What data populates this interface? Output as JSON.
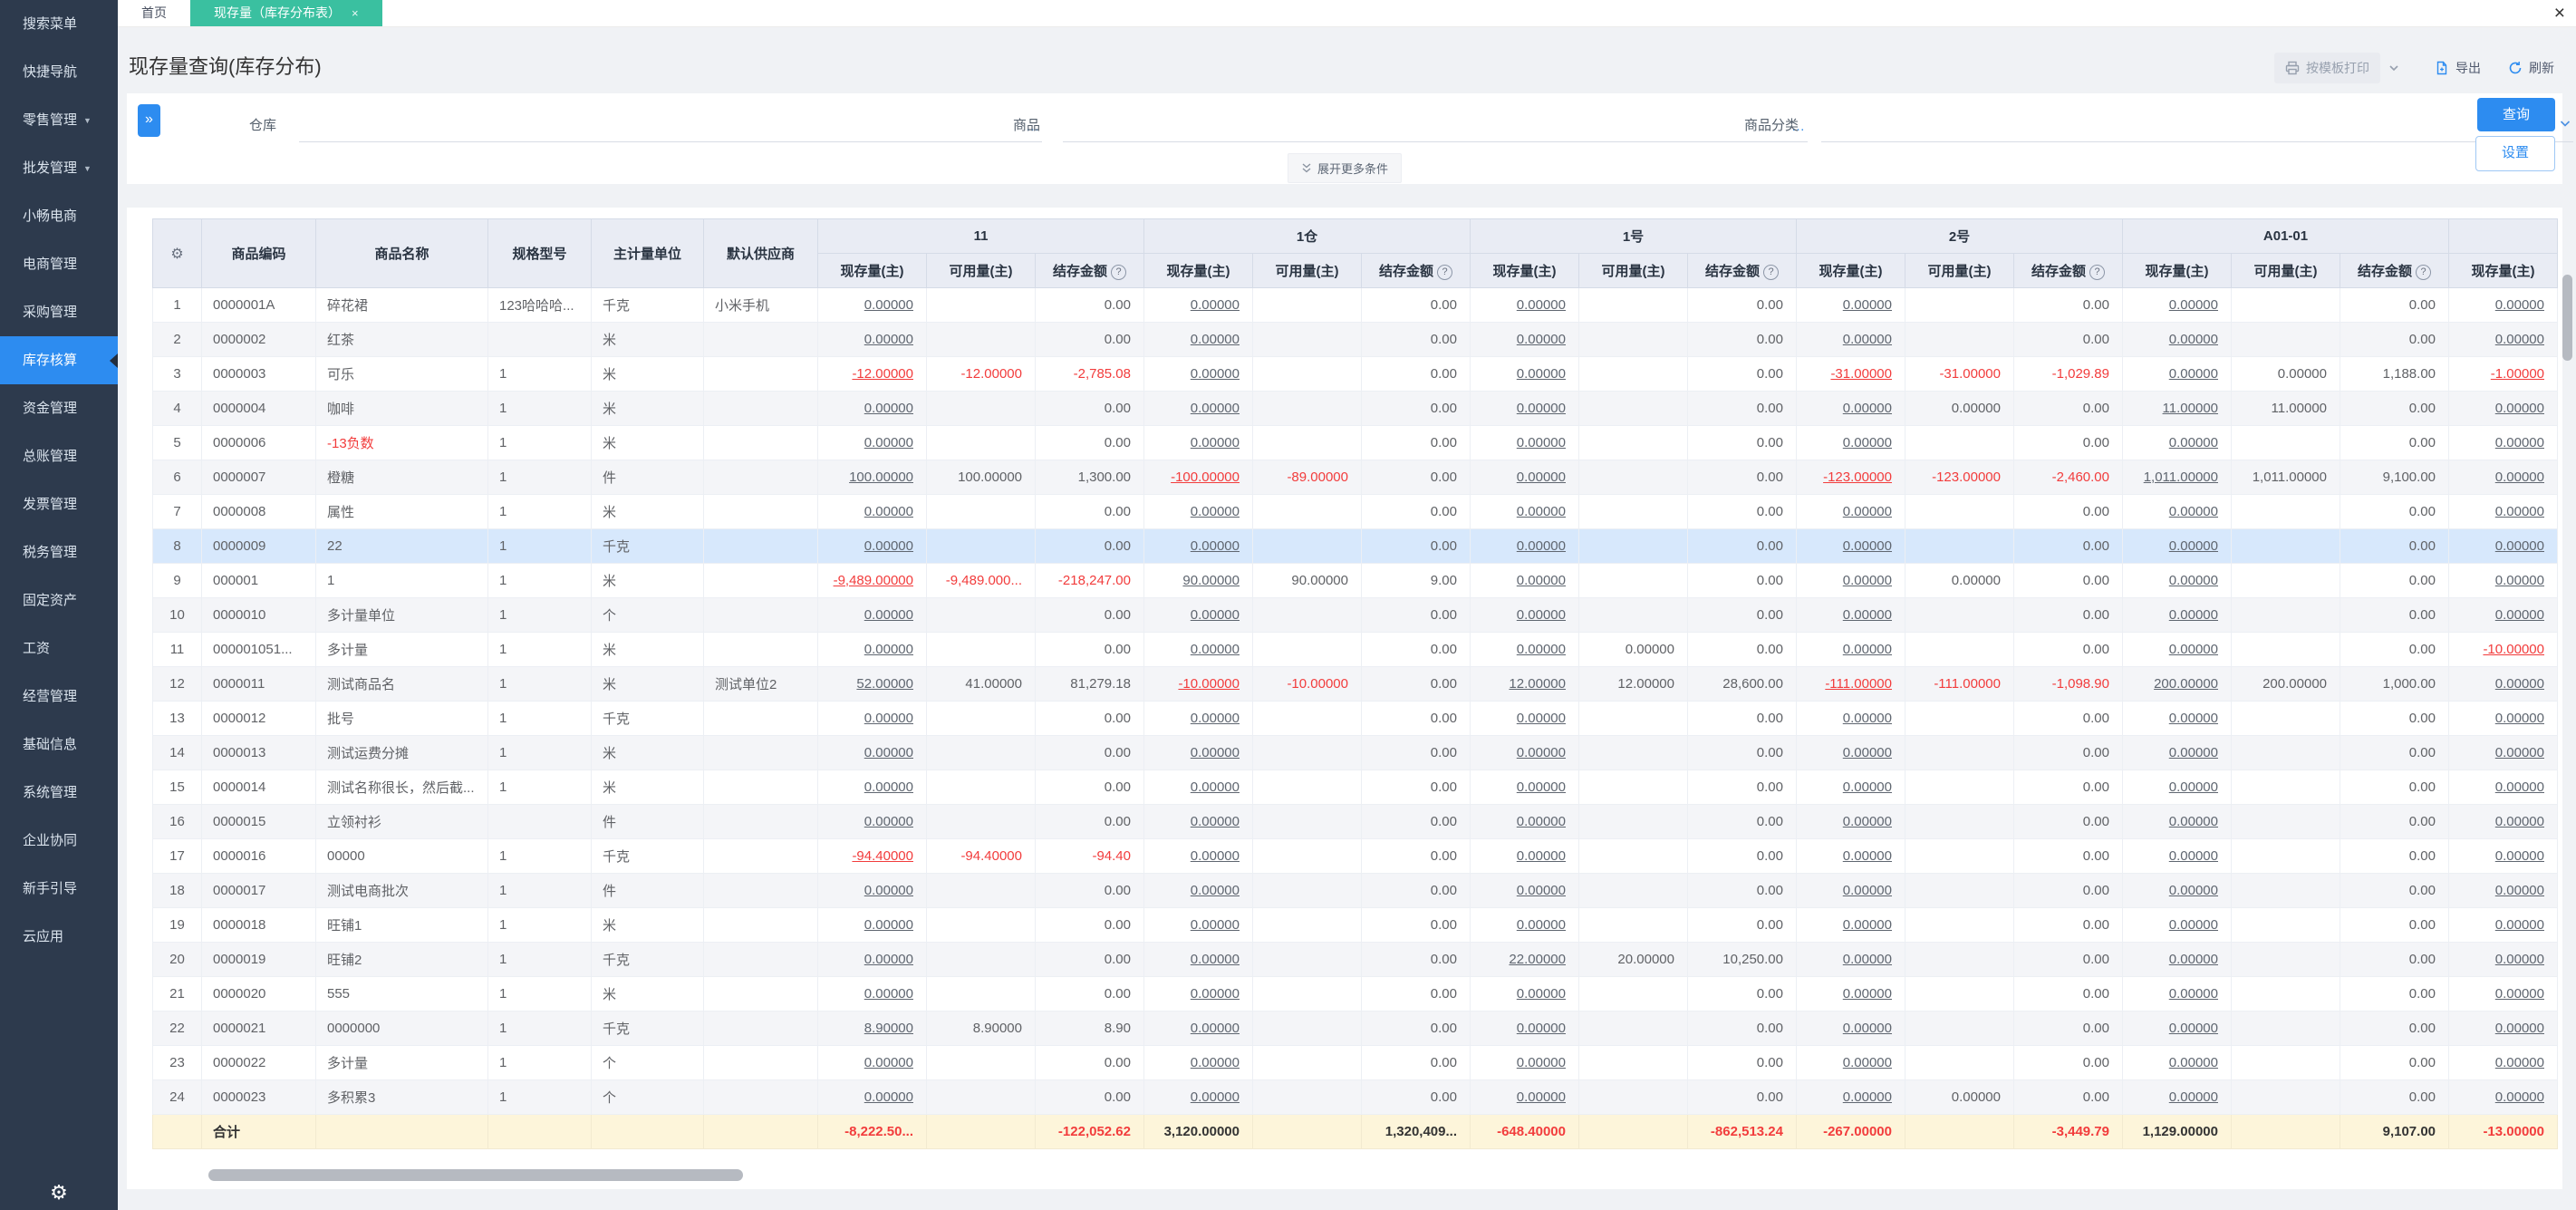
{
  "icons": {
    "close": "×",
    "collapse": "»",
    "gear": "⚙",
    "caret": "▼",
    "window_close": "×"
  },
  "sidebar": {
    "items": [
      {
        "label": "搜索菜单"
      },
      {
        "label": "快捷导航"
      },
      {
        "label": "零售管理",
        "arrow": true
      },
      {
        "label": "批发管理",
        "arrow": true
      },
      {
        "label": "小畅电商"
      },
      {
        "label": "电商管理"
      },
      {
        "label": "采购管理"
      },
      {
        "label": "库存核算",
        "active": true
      },
      {
        "label": "资金管理"
      },
      {
        "label": "总账管理"
      },
      {
        "label": "发票管理"
      },
      {
        "label": "税务管理"
      },
      {
        "label": "固定资产"
      },
      {
        "label": "工资"
      },
      {
        "label": "经营管理"
      },
      {
        "label": "基础信息"
      },
      {
        "label": "系统管理"
      },
      {
        "label": "企业协同"
      },
      {
        "label": "新手引导"
      },
      {
        "label": "云应用"
      }
    ]
  },
  "tabs": [
    {
      "label": "首页",
      "active": false
    },
    {
      "label": "现存量（库存分布表）",
      "active": true,
      "closable": true
    }
  ],
  "page": {
    "title": "现存量查询(库存分布)"
  },
  "toolbar": {
    "print": "按模板打印",
    "export": "导出",
    "refresh": "刷新"
  },
  "filters": {
    "fields": [
      {
        "label": "仓库",
        "suffix": "…"
      },
      {
        "label": "商品",
        "suffix": "…"
      },
      {
        "label": "商品分类",
        "suffix": "chevron"
      }
    ],
    "query": "查询",
    "settings": "设置",
    "expand": "展开更多条件"
  },
  "table": {
    "fixed_headers": [
      "商品编码",
      "商品名称",
      "规格型号",
      "主计量单位",
      "默认供应商"
    ],
    "groups": [
      {
        "name": "11",
        "cols": 3
      },
      {
        "name": "1仓",
        "cols": 3
      },
      {
        "name": "1号",
        "cols": 3
      },
      {
        "name": "2号",
        "cols": 3
      },
      {
        "name": "A01-01",
        "cols": 3
      },
      {
        "name": "",
        "cols": 1
      }
    ],
    "sub_headers": [
      "现存量(主)",
      "可用量(主)",
      "结存金额"
    ],
    "rows": [
      {
        "no": 1,
        "code": "0000001A",
        "name": "碎花裙",
        "spec": "123哈哈哈...",
        "unit": "千克",
        "supplier": "小米手机",
        "v": [
          "0.00000",
          "",
          "0.00",
          "0.00000",
          "",
          "0.00",
          "0.00000",
          "",
          "0.00",
          "0.00000",
          "",
          "0.00",
          "0.00000",
          "",
          "0.00",
          "0.00000"
        ]
      },
      {
        "no": 2,
        "code": "0000002",
        "name": "红茶",
        "spec": "",
        "unit": "米",
        "supplier": "",
        "v": [
          "0.00000",
          "",
          "0.00",
          "0.00000",
          "",
          "0.00",
          "0.00000",
          "",
          "0.00",
          "0.00000",
          "",
          "0.00",
          "0.00000",
          "",
          "0.00",
          "0.00000"
        ]
      },
      {
        "no": 3,
        "code": "0000003",
        "name": "可乐",
        "spec": "1",
        "unit": "米",
        "supplier": "",
        "v": [
          "-12.00000",
          "-12.00000",
          "-2,785.08",
          "0.00000",
          "",
          "0.00",
          "0.00000",
          "",
          "0.00",
          "-31.00000",
          "-31.00000",
          "-1,029.89",
          "0.00000",
          "0.00000",
          "1,188.00",
          "-1.00000"
        ]
      },
      {
        "no": 4,
        "code": "0000004",
        "name": "咖啡",
        "spec": "1",
        "unit": "米",
        "supplier": "",
        "v": [
          "0.00000",
          "",
          "0.00",
          "0.00000",
          "",
          "0.00",
          "0.00000",
          "",
          "0.00",
          "0.00000",
          "0.00000",
          "0.00",
          "11.00000",
          "11.00000",
          "0.00",
          "0.00000"
        ]
      },
      {
        "no": 5,
        "code": "0000006",
        "name": "-13负数",
        "name_red": true,
        "spec": "1",
        "unit": "米",
        "supplier": "",
        "v": [
          "0.00000",
          "",
          "0.00",
          "0.00000",
          "",
          "0.00",
          "0.00000",
          "",
          "0.00",
          "0.00000",
          "",
          "0.00",
          "0.00000",
          "",
          "0.00",
          "0.00000"
        ]
      },
      {
        "no": 6,
        "code": "0000007",
        "name": "橙糖",
        "spec": "1",
        "unit": "件",
        "supplier": "",
        "v": [
          "100.00000",
          "100.00000",
          "1,300.00",
          "-100.00000",
          "-89.00000",
          "0.00",
          "0.00000",
          "",
          "0.00",
          "-123.00000",
          "-123.00000",
          "-2,460.00",
          "1,011.00000",
          "1,011.00000",
          "9,100.00",
          "0.00000"
        ]
      },
      {
        "no": 7,
        "code": "0000008",
        "name": "属性",
        "spec": "1",
        "unit": "米",
        "supplier": "",
        "v": [
          "0.00000",
          "",
          "0.00",
          "0.00000",
          "",
          "0.00",
          "0.00000",
          "",
          "0.00",
          "0.00000",
          "",
          "0.00",
          "0.00000",
          "",
          "0.00",
          "0.00000"
        ]
      },
      {
        "no": 8,
        "code": "0000009",
        "name": "22",
        "spec": "1",
        "unit": "千克",
        "supplier": "",
        "hl": true,
        "v": [
          "0.00000",
          "",
          "0.00",
          "0.00000",
          "",
          "0.00",
          "0.00000",
          "",
          "0.00",
          "0.00000",
          "",
          "0.00",
          "0.00000",
          "",
          "0.00",
          "0.00000"
        ]
      },
      {
        "no": 9,
        "code": "000001",
        "name": "1",
        "spec": "1",
        "unit": "米",
        "supplier": "",
        "v": [
          "-9,489.00000",
          "-9,489.000...",
          "-218,247.00",
          "90.00000",
          "90.00000",
          "9.00",
          "0.00000",
          "",
          "0.00",
          "0.00000",
          "0.00000",
          "0.00",
          "0.00000",
          "",
          "0.00",
          "0.00000"
        ]
      },
      {
        "no": 10,
        "code": "0000010",
        "name": "多计量单位",
        "spec": "1",
        "unit": "个",
        "supplier": "",
        "v": [
          "0.00000",
          "",
          "0.00",
          "0.00000",
          "",
          "0.00",
          "0.00000",
          "",
          "0.00",
          "0.00000",
          "",
          "0.00",
          "0.00000",
          "",
          "0.00",
          "0.00000"
        ]
      },
      {
        "no": 11,
        "code": "000001051...",
        "name": "多计量",
        "spec": "1",
        "unit": "米",
        "supplier": "",
        "v": [
          "0.00000",
          "",
          "0.00",
          "0.00000",
          "",
          "0.00",
          "0.00000",
          "0.00000",
          "0.00",
          "0.00000",
          "",
          "0.00",
          "0.00000",
          "",
          "0.00",
          "-10.00000"
        ]
      },
      {
        "no": 12,
        "code": "0000011",
        "name": "测试商品名",
        "spec": "1",
        "unit": "米",
        "supplier": "测试单位2",
        "v": [
          "52.00000",
          "41.00000",
          "81,279.18",
          "-10.00000",
          "-10.00000",
          "0.00",
          "12.00000",
          "12.00000",
          "28,600.00",
          "-111.00000",
          "-111.00000",
          "-1,098.90",
          "200.00000",
          "200.00000",
          "1,000.00",
          "0.00000"
        ]
      },
      {
        "no": 13,
        "code": "0000012",
        "name": "批号",
        "spec": "1",
        "unit": "千克",
        "supplier": "",
        "v": [
          "0.00000",
          "",
          "0.00",
          "0.00000",
          "",
          "0.00",
          "0.00000",
          "",
          "0.00",
          "0.00000",
          "",
          "0.00",
          "0.00000",
          "",
          "0.00",
          "0.00000"
        ]
      },
      {
        "no": 14,
        "code": "0000013",
        "name": "测试运费分摊",
        "spec": "1",
        "unit": "米",
        "supplier": "",
        "v": [
          "0.00000",
          "",
          "0.00",
          "0.00000",
          "",
          "0.00",
          "0.00000",
          "",
          "0.00",
          "0.00000",
          "",
          "0.00",
          "0.00000",
          "",
          "0.00",
          "0.00000"
        ]
      },
      {
        "no": 15,
        "code": "0000014",
        "name": "测试名称很长，然后截...",
        "spec": "1",
        "unit": "米",
        "supplier": "",
        "v": [
          "0.00000",
          "",
          "0.00",
          "0.00000",
          "",
          "0.00",
          "0.00000",
          "",
          "0.00",
          "0.00000",
          "",
          "0.00",
          "0.00000",
          "",
          "0.00",
          "0.00000"
        ]
      },
      {
        "no": 16,
        "code": "0000015",
        "name": "立领衬衫",
        "spec": "",
        "unit": "件",
        "supplier": "",
        "v": [
          "0.00000",
          "",
          "0.00",
          "0.00000",
          "",
          "0.00",
          "0.00000",
          "",
          "0.00",
          "0.00000",
          "",
          "0.00",
          "0.00000",
          "",
          "0.00",
          "0.00000"
        ]
      },
      {
        "no": 17,
        "code": "0000016",
        "name": "00000",
        "spec": "1",
        "unit": "千克",
        "supplier": "",
        "v": [
          "-94.40000",
          "-94.40000",
          "-94.40",
          "0.00000",
          "",
          "0.00",
          "0.00000",
          "",
          "0.00",
          "0.00000",
          "",
          "0.00",
          "0.00000",
          "",
          "0.00",
          "0.00000"
        ]
      },
      {
        "no": 18,
        "code": "0000017",
        "name": "测试电商批次",
        "spec": "1",
        "unit": "件",
        "supplier": "",
        "v": [
          "0.00000",
          "",
          "0.00",
          "0.00000",
          "",
          "0.00",
          "0.00000",
          "",
          "0.00",
          "0.00000",
          "",
          "0.00",
          "0.00000",
          "",
          "0.00",
          "0.00000"
        ]
      },
      {
        "no": 19,
        "code": "0000018",
        "name": "旺铺1",
        "spec": "1",
        "unit": "米",
        "supplier": "",
        "v": [
          "0.00000",
          "",
          "0.00",
          "0.00000",
          "",
          "0.00",
          "0.00000",
          "",
          "0.00",
          "0.00000",
          "",
          "0.00",
          "0.00000",
          "",
          "0.00",
          "0.00000"
        ]
      },
      {
        "no": 20,
        "code": "0000019",
        "name": "旺铺2",
        "spec": "1",
        "unit": "千克",
        "supplier": "",
        "v": [
          "0.00000",
          "",
          "0.00",
          "0.00000",
          "",
          "0.00",
          "22.00000",
          "20.00000",
          "10,250.00",
          "0.00000",
          "",
          "0.00",
          "0.00000",
          "",
          "0.00",
          "0.00000"
        ]
      },
      {
        "no": 21,
        "code": "0000020",
        "name": "555",
        "spec": "1",
        "unit": "米",
        "supplier": "",
        "v": [
          "0.00000",
          "",
          "0.00",
          "0.00000",
          "",
          "0.00",
          "0.00000",
          "",
          "0.00",
          "0.00000",
          "",
          "0.00",
          "0.00000",
          "",
          "0.00",
          "0.00000"
        ]
      },
      {
        "no": 22,
        "code": "0000021",
        "name": "0000000",
        "spec": "1",
        "unit": "千克",
        "supplier": "",
        "v": [
          "8.90000",
          "8.90000",
          "8.90",
          "0.00000",
          "",
          "0.00",
          "0.00000",
          "",
          "0.00",
          "0.00000",
          "",
          "0.00",
          "0.00000",
          "",
          "0.00",
          "0.00000"
        ]
      },
      {
        "no": 23,
        "code": "0000022",
        "name": "多计量",
        "spec": "1",
        "unit": "个",
        "supplier": "",
        "v": [
          "0.00000",
          "",
          "0.00",
          "0.00000",
          "",
          "0.00",
          "0.00000",
          "",
          "0.00",
          "0.00000",
          "",
          "0.00",
          "0.00000",
          "",
          "0.00",
          "0.00000"
        ]
      },
      {
        "no": 24,
        "code": "0000023",
        "name": "多积累3",
        "spec": "1",
        "unit": "个",
        "supplier": "",
        "v": [
          "0.00000",
          "",
          "0.00",
          "0.00000",
          "",
          "0.00",
          "0.00000",
          "",
          "0.00",
          "0.00000",
          "0.00000",
          "0.00",
          "0.00000",
          "",
          "0.00",
          "0.00000"
        ]
      }
    ],
    "total": {
      "label": "合计",
      "v": [
        "-8,222.50...",
        "",
        "-122,052.62",
        "3,120.00000",
        "",
        "1,320,409...",
        "-648.40000",
        "",
        "-862,513.24",
        "-267.00000",
        "",
        "-3,449.79",
        "1,129.00000",
        "",
        "9,107.00",
        "-13.00000"
      ]
    }
  }
}
